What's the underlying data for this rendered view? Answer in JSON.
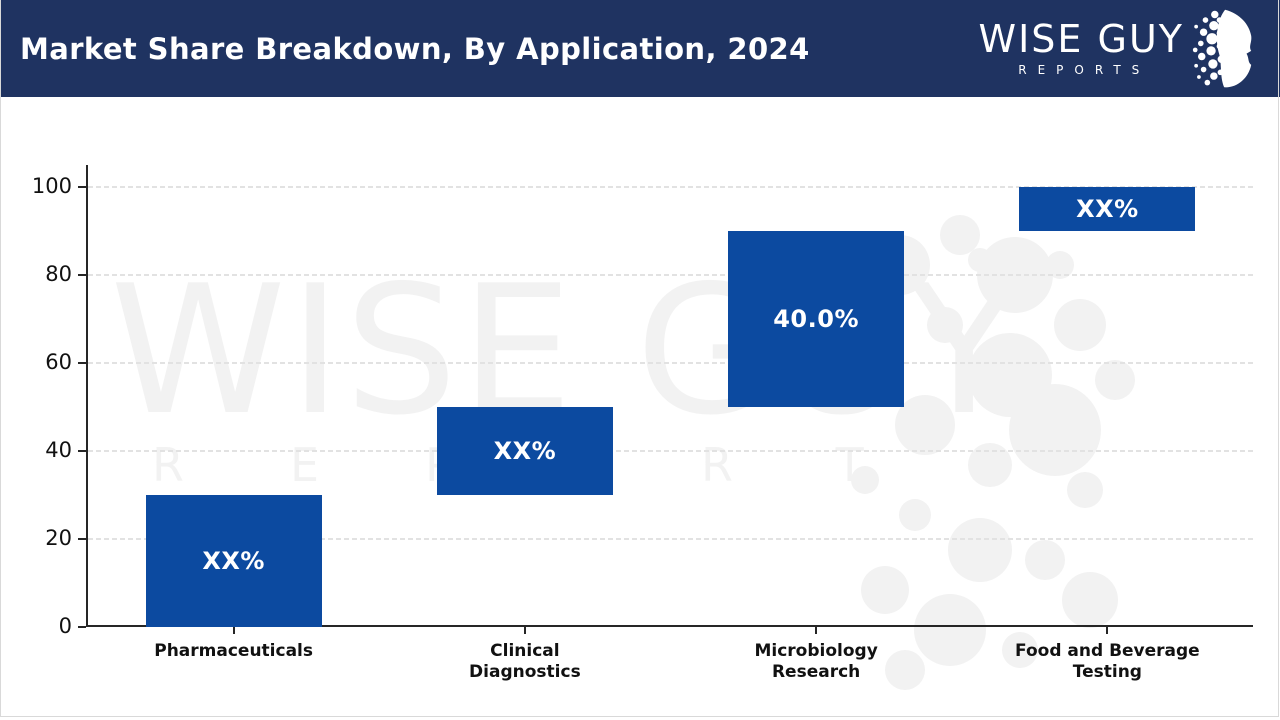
{
  "header": {
    "title": "Market Share Breakdown, By Application, 2024",
    "logo": {
      "name_top": "WISE GUY",
      "name_bottom": "REPORTS"
    }
  },
  "watermark": {
    "line1": "WISE GUY",
    "line2": "REPORTS"
  },
  "chart_data": {
    "type": "bar",
    "subtype": "floating-range-bars",
    "title": "Market Share Breakdown, By Application, 2024",
    "categories": [
      "Pharmaceuticals",
      "Clinical Diagnostics",
      "Microbiology Research",
      "Food and Beverage Testing"
    ],
    "category_label_lines": [
      [
        "Pharmaceuticals"
      ],
      [
        "Clinical",
        "Diagnostics"
      ],
      [
        "Microbiology",
        "Research"
      ],
      [
        "Food and Beverage",
        "Testing"
      ]
    ],
    "series": [
      {
        "ranges": [
          [
            0,
            30
          ],
          [
            30,
            50
          ],
          [
            50,
            90
          ],
          [
            90,
            100
          ]
        ],
        "labels": [
          "XX%",
          "XX%",
          "40.0%",
          "XX%"
        ]
      }
    ],
    "xlabel": "",
    "ylabel": "",
    "yticks": [
      0,
      20,
      40,
      60,
      80,
      100
    ],
    "ylim": [
      0,
      105
    ],
    "grid": "horizontal-dashed",
    "legend": "none",
    "bar_color": "#0c4aa0"
  },
  "colors": {
    "header_bg": "#1f3361",
    "bar": "#0c4aa0",
    "axis": "#262626",
    "gridline": "#e2e2e2",
    "watermark": "#f2f2f2",
    "title_text": "#ffffff",
    "tick_text": "#111111"
  }
}
